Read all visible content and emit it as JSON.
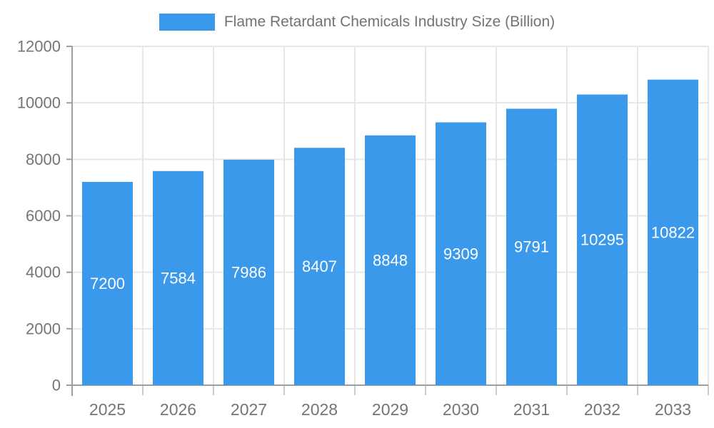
{
  "legend": {
    "label": "Flame Retardant Chemicals Industry Size (Billion)"
  },
  "colors": {
    "bar": "#3B99EC",
    "grid": "#e6e6e6",
    "axis": "#9e9e9e",
    "x_tick": "#cccccc",
    "tick_text": "#757575",
    "value_label": "#ffffff",
    "legend_text": "#737373",
    "background": "#ffffff"
  },
  "chart_data": {
    "type": "bar",
    "title": "Flame Retardant Chemicals Industry Size (Billion)",
    "categories": [
      "2025",
      "2026",
      "2027",
      "2028",
      "2029",
      "2030",
      "2031",
      "2032",
      "2033"
    ],
    "values": [
      7200,
      7584,
      7986,
      8407,
      8848,
      9309,
      9791,
      10295,
      10822
    ],
    "xlabel": "",
    "ylabel": "",
    "ylim": [
      0,
      12000
    ],
    "ytick_step": 2000,
    "yticks": [
      0,
      2000,
      4000,
      6000,
      8000,
      10000,
      12000
    ],
    "grid": true,
    "legend_position": "top",
    "bar_labels": true,
    "bar_label_position": "center"
  }
}
